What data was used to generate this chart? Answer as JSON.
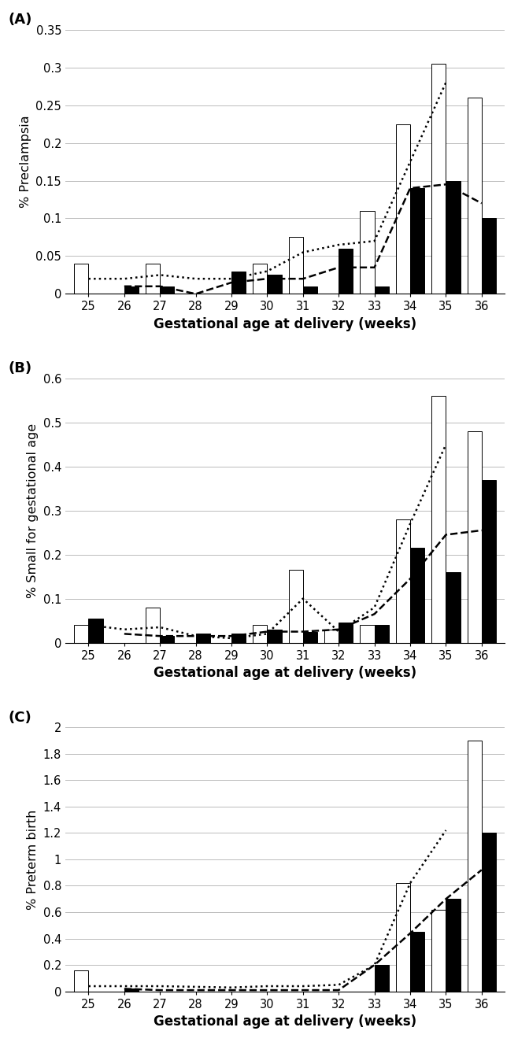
{
  "weeks": [
    25,
    26,
    27,
    28,
    29,
    30,
    31,
    32,
    33,
    34,
    35,
    36
  ],
  "panels": [
    {
      "label": "(A)",
      "ylabel": "% Preclampsia",
      "ylim": [
        0,
        0.35
      ],
      "yticks": [
        0,
        0.05,
        0.1,
        0.15,
        0.2,
        0.25,
        0.3,
        0.35
      ],
      "ytick_labels": [
        "0",
        "0.05",
        "0.1",
        "0.15",
        "0.2",
        "0.25",
        "0.3",
        "0.35"
      ],
      "bars_white": [
        0.04,
        0.0,
        0.04,
        0.0,
        0.0,
        0.04,
        0.075,
        0.0,
        0.11,
        0.225,
        0.305,
        0.26
      ],
      "bars_black": [
        0.0,
        0.01,
        0.01,
        0.0,
        0.03,
        0.025,
        0.01,
        0.06,
        0.01,
        0.14,
        0.15,
        0.1
      ],
      "line_dotted_x": [
        25,
        26,
        27,
        28,
        29,
        30,
        31,
        32,
        33,
        34,
        35
      ],
      "line_dotted_y": [
        0.02,
        0.02,
        0.025,
        0.02,
        0.02,
        0.03,
        0.055,
        0.065,
        0.07,
        0.175,
        0.28
      ],
      "line_dashed_x": [
        26,
        27,
        28,
        29,
        30,
        31,
        32,
        33,
        34,
        35,
        36
      ],
      "line_dashed_y": [
        0.01,
        0.01,
        0.0,
        0.015,
        0.02,
        0.02,
        0.035,
        0.035,
        0.14,
        0.145,
        0.12
      ]
    },
    {
      "label": "(B)",
      "ylabel": "% Small for gestational age",
      "ylim": [
        0,
        0.6
      ],
      "yticks": [
        0,
        0.1,
        0.2,
        0.3,
        0.4,
        0.5,
        0.6
      ],
      "ytick_labels": [
        "0",
        "0.1",
        "0.2",
        "0.3",
        "0.4",
        "0.5",
        "0.6"
      ],
      "bars_white": [
        0.04,
        0.0,
        0.08,
        0.0,
        0.0,
        0.04,
        0.165,
        0.03,
        0.04,
        0.28,
        0.56,
        0.48
      ],
      "bars_black": [
        0.055,
        0.0,
        0.015,
        0.02,
        0.02,
        0.03,
        0.025,
        0.045,
        0.04,
        0.215,
        0.16,
        0.37
      ],
      "line_dotted_x": [
        25,
        26,
        27,
        28,
        29,
        30,
        31,
        32,
        33,
        34,
        35
      ],
      "line_dotted_y": [
        0.04,
        0.03,
        0.035,
        0.015,
        0.01,
        0.02,
        0.1,
        0.025,
        0.08,
        0.27,
        0.45
      ],
      "line_dashed_x": [
        26,
        27,
        28,
        29,
        30,
        31,
        32,
        33,
        34,
        35,
        36
      ],
      "line_dashed_y": [
        0.02,
        0.015,
        0.015,
        0.015,
        0.025,
        0.025,
        0.03,
        0.065,
        0.145,
        0.245,
        0.255
      ]
    },
    {
      "label": "(C)",
      "ylabel": "% Preterm birth",
      "ylim": [
        0,
        2.0
      ],
      "yticks": [
        0,
        0.2,
        0.4,
        0.6,
        0.8,
        1.0,
        1.2,
        1.4,
        1.6,
        1.8,
        2.0
      ],
      "ytick_labels": [
        "0",
        "0.2",
        "0.4",
        "0.6",
        "0.8",
        "1",
        "1.2",
        "1.4",
        "1.6",
        "1.8",
        "2"
      ],
      "bars_white": [
        0.16,
        0.0,
        0.0,
        0.0,
        0.0,
        0.0,
        0.0,
        0.0,
        0.0,
        0.82,
        0.62,
        1.9
      ],
      "bars_black": [
        0.0,
        0.02,
        0.0,
        0.0,
        0.0,
        0.0,
        0.0,
        0.0,
        0.2,
        0.45,
        0.7,
        1.2
      ],
      "line_dotted_x": [
        25,
        26,
        27,
        28,
        29,
        30,
        31,
        32,
        33,
        34,
        35
      ],
      "line_dotted_y": [
        0.04,
        0.04,
        0.04,
        0.035,
        0.03,
        0.04,
        0.04,
        0.05,
        0.2,
        0.82,
        1.22
      ],
      "line_dashed_x": [
        26,
        27,
        28,
        29,
        30,
        31,
        32,
        33,
        34,
        35,
        36
      ],
      "line_dashed_y": [
        0.02,
        0.01,
        0.01,
        0.01,
        0.01,
        0.01,
        0.01,
        0.2,
        0.44,
        0.7,
        0.92
      ]
    }
  ],
  "xlabel": "Gestational age at delivery (weeks)",
  "bar_width": 0.4,
  "fig_width": 6.58,
  "fig_height": 13.24,
  "background_color": "#ffffff",
  "bar_color_white": "#ffffff",
  "bar_color_black": "#000000",
  "bar_edgecolor": "#000000",
  "line_color": "#000000"
}
